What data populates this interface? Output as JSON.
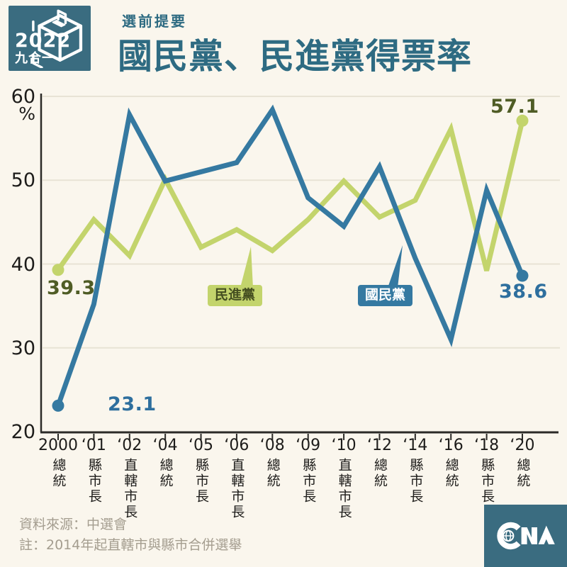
{
  "header": {
    "badge": {
      "year": "2022",
      "label": "九合一"
    },
    "kicker": "選前提要",
    "title": "國民黨、民進黨得票率"
  },
  "colors": {
    "background": "#faf6ed",
    "brand_teal": "#3a6c80",
    "title_teal": "#2e6b82",
    "axis": "#2b2a27",
    "grid": "#e8e3d5"
  },
  "chart_data": {
    "type": "line",
    "unit": "%",
    "ylim": [
      20,
      60
    ],
    "yticks": [
      20,
      30,
      40,
      50,
      60
    ],
    "grid": "horizontal-only",
    "categories": [
      {
        "year": "2000",
        "type": "總統"
      },
      {
        "year": "‘01",
        "type": "縣市長"
      },
      {
        "year": "‘02",
        "type": "直轄市長"
      },
      {
        "year": "‘04",
        "type": "總統"
      },
      {
        "year": "‘05",
        "type": "縣市長"
      },
      {
        "year": "‘06",
        "type": "直轄市長"
      },
      {
        "year": "‘08",
        "type": "總統"
      },
      {
        "year": "‘09",
        "type": "縣市長"
      },
      {
        "year": "‘10",
        "type": "直轄市長"
      },
      {
        "year": "‘12",
        "type": "總統"
      },
      {
        "year": "‘14",
        "type": "縣市長"
      },
      {
        "year": "‘16",
        "type": "總統"
      },
      {
        "year": "‘18",
        "type": "縣市長"
      },
      {
        "year": "‘20",
        "type": "總統"
      }
    ],
    "series": [
      {
        "name": "民進黨",
        "color": "#c3d46c",
        "label_color": "#4f5c25",
        "values": [
          39.3,
          45.3,
          41.0,
          50.1,
          42.0,
          44.1,
          41.6,
          45.3,
          49.9,
          45.6,
          47.6,
          56.1,
          39.2,
          57.1
        ],
        "first_label": "39.3",
        "last_label": "57.1"
      },
      {
        "name": "國民黨",
        "color": "#3579a1",
        "label_color": "#2e6f9e",
        "values": [
          23.1,
          35.2,
          57.8,
          49.9,
          51.0,
          52.1,
          58.4,
          47.9,
          44.5,
          51.6,
          40.7,
          31.0,
          48.8,
          38.6
        ],
        "first_label": "23.1",
        "last_label": "38.6"
      }
    ]
  },
  "footer": {
    "source": "資料來源：中選會",
    "note": "註：2014年起直轄市與縣市合併選舉"
  },
  "logo_text": "CNA"
}
